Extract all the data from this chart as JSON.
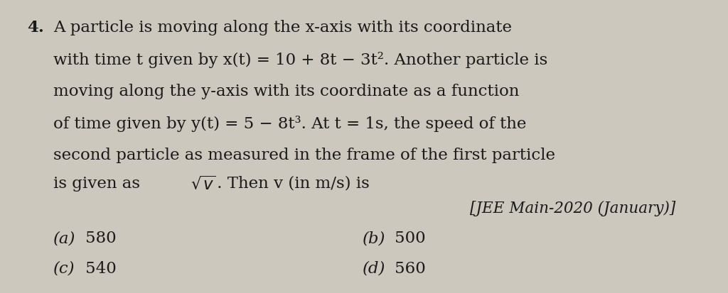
{
  "background_color": "#ccc8be",
  "text_color": "#1a1a1a",
  "figsize": [
    10.24,
    4.13
  ],
  "dpi": 100,
  "question_number": "4.",
  "line1": "A particle is moving along the x-axis with its coordinate",
  "line2": "with time t given by x(t) = 10 + 8t − 3t². Another particle is",
  "line3": "moving along the y-axis with its coordinate as a function",
  "line4": "of time given by y(t) = 5 − 8t³. At t = 1s, the speed of the",
  "line5": "second particle as measured in the frame of the first particle",
  "line6_prefix": "is given as ",
  "line6_suffix": " . Then v (in m/s) is",
  "source": "[JEE Main-2020 (January)]",
  "opt_a_label": "(a)",
  "opt_a_val": "580",
  "opt_b_label": "(b)",
  "opt_b_val": "500",
  "opt_c_label": "(c)",
  "opt_c_val": "540",
  "opt_d_label": "(d)",
  "opt_d_val": "560",
  "main_font_size": 16.5,
  "source_font_size": 15.5,
  "option_font_size": 16.5
}
